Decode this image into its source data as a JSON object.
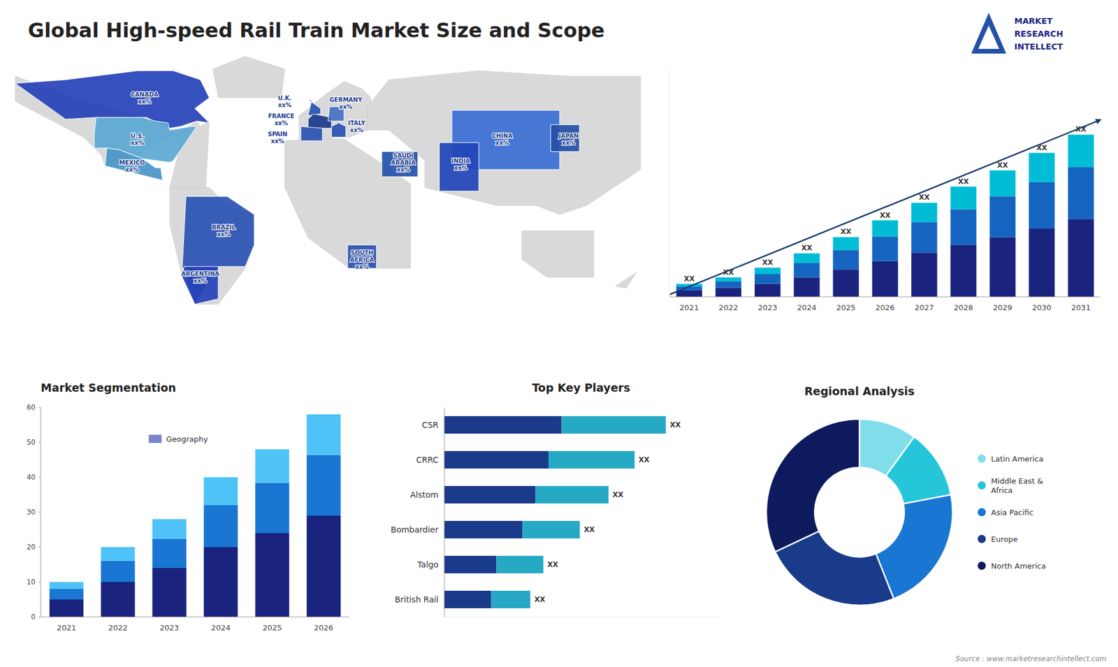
{
  "chart_data": [
    {
      "type": "map",
      "title": "Global High-speed Rail Train Market Size and Scope",
      "categories": [
        "CANADA\nxx%",
        "U.S.\nxx%",
        "MEXICO\nxx%",
        "BRAZIL\nxx%",
        "ARGENTINA\nxx%",
        "U.K.\nxx%",
        "FRANCE\nxx%",
        "SPAIN\nxx%",
        "GERMANY\nxx%",
        "ITALY\nxx%",
        "CHINA\nxx%",
        "JAPAN\nxx%",
        "INDIA\nxx%",
        "SAUDI\nARABIA\nxx%",
        "SOUTH\nAFRICA\nxx%"
      ],
      "colors": [
        "#2541b8",
        "#5ba8d4",
        "#4895c8",
        "#2952b3",
        "#2541b8",
        "#2952b3",
        "#1a3a8a",
        "#2952b3",
        "#4472c4",
        "#2952b3",
        "#3a6fd4",
        "#2550a8",
        "#2245b8",
        "#2350a8",
        "#2952b3"
      ],
      "color": "#1a3a8a",
      "annotations": [
        "MARKET",
        "RESEARCH",
        "INTELLECT",
        "Source : www.marketresearchintellect.com"
      ]
    },
    {
      "type": "bar",
      "stacked": true,
      "categories": [
        "2021",
        "2022",
        "2023",
        "2024",
        "2025",
        "2026",
        "2027",
        "2028",
        "2029",
        "2030",
        "2031"
      ],
      "series": [
        {
          "color": "#1a237e",
          "values": [
            1.0,
            1.4,
            2.0,
            3.0,
            4.2,
            5.5,
            6.8,
            8.0,
            9.2,
            10.5,
            12.0
          ]
        },
        {
          "color": "#1565c0",
          "values": [
            0.6,
            1.0,
            1.5,
            2.2,
            3.0,
            3.8,
            4.7,
            5.5,
            6.3,
            7.2,
            8.0
          ]
        },
        {
          "color": "#00bcd4",
          "values": [
            0.4,
            0.6,
            1.0,
            1.5,
            2.0,
            2.5,
            3.0,
            3.5,
            4.0,
            4.5,
            5.0
          ],
          "value_labels": [
            "XX",
            "XX",
            "XX",
            "XX",
            "XX",
            "XX",
            "XX",
            "XX",
            "XX",
            "XX",
            "XX"
          ]
        }
      ],
      "data_labels": true,
      "ylim": [
        0,
        35
      ],
      "tick_labels": "x"
    },
    {
      "type": "bar",
      "title": "Market Segmentation",
      "stacked": true,
      "categories": [
        "2021",
        "2022",
        "2023",
        "2024",
        "2025",
        "2026"
      ],
      "series": [
        {
          "color": "#1a237e",
          "values": [
            5,
            10,
            14,
            20,
            24,
            29
          ]
        },
        {
          "color": "#1976d2",
          "values": [
            3,
            6,
            8.4,
            12,
            14.4,
            17.4
          ]
        },
        {
          "color": "#4fc3f7",
          "values": [
            2,
            4,
            5.6,
            8,
            9.6,
            11.6
          ]
        }
      ],
      "ylim": [
        0,
        60
      ],
      "yticks": [
        0,
        10,
        20,
        30,
        40,
        50,
        60
      ],
      "annotations": [
        {
          "text": "Geography",
          "color": "#7986cb"
        }
      ]
    },
    {
      "type": "bar",
      "title": "Top Key Players",
      "orientation": "horizontal",
      "stacked": true,
      "categories": [
        "CSR",
        "CRRC",
        "Alstom",
        "Bombardier",
        "Talgo",
        "British Rail"
      ],
      "series": [
        {
          "color": "#1a3a8a",
          "values": [
            0.45,
            0.4,
            0.35,
            0.3,
            0.2,
            0.18
          ]
        },
        {
          "color": "#26a9c5",
          "values": [
            0.4,
            0.33,
            0.28,
            0.22,
            0.18,
            0.15
          ],
          "value_labels": [
            "XX",
            "XX",
            "XX",
            "XX",
            "XX",
            "XX"
          ]
        }
      ],
      "data_labels": true,
      "xlim": [
        0,
        1.05
      ],
      "tick_labels": "y"
    },
    {
      "type": "donut",
      "title": "Regional Analysis",
      "categories": [
        "Latin America",
        "Middle East &\nAfrica",
        "Asia Pacific",
        "Europe",
        "North America"
      ],
      "values": [
        10,
        12,
        22,
        24,
        32
      ],
      "colors": [
        "#80deea",
        "#26c6da",
        "#1976d2",
        "#1a3a8a",
        "#0d1b5e"
      ],
      "legend": "right"
    }
  ]
}
